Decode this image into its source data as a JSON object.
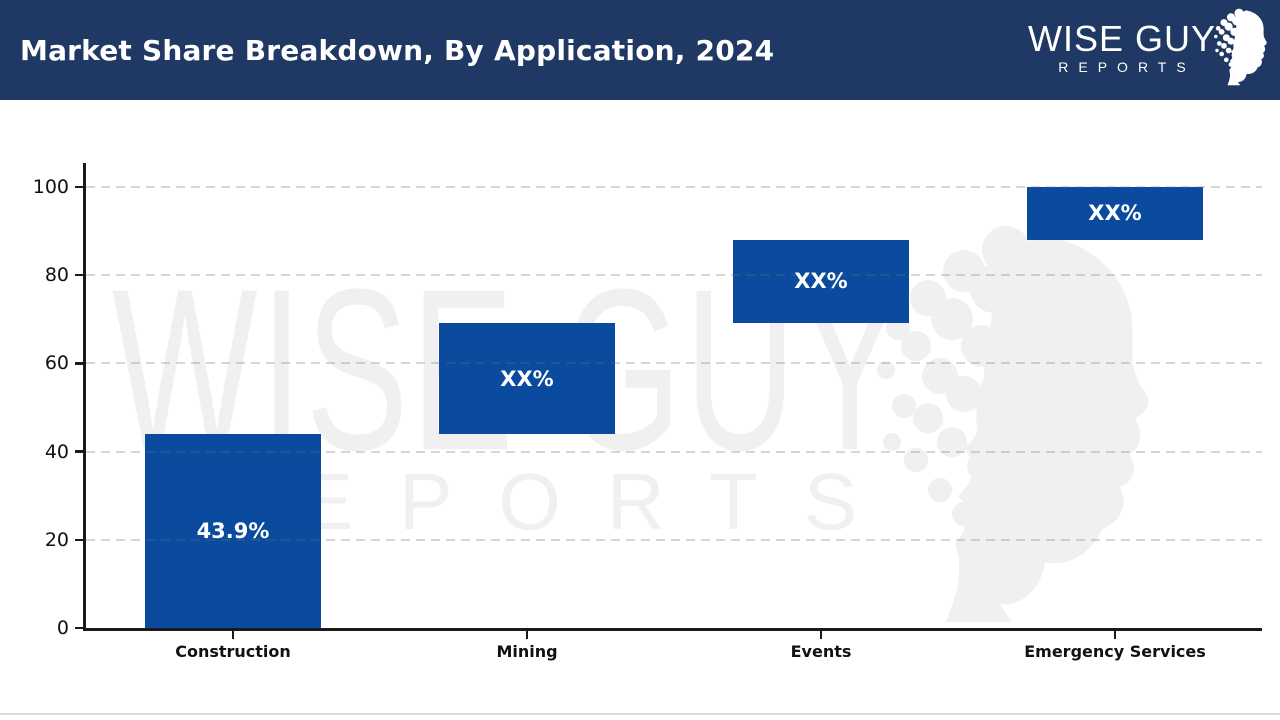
{
  "header": {
    "title": "Market Share Breakdown, By Application, 2024",
    "bg_color": "#1f3864",
    "logo": {
      "wordmark": "WISE GUY",
      "subtext": "REPORTS"
    }
  },
  "chart_data": {
    "type": "bar",
    "subtype": "waterfall",
    "title": "Market Share Breakdown, By Application, 2024",
    "categories": [
      "Construction",
      "Mining",
      "Events",
      "Emergency Services"
    ],
    "segments": [
      {
        "category": "Construction",
        "start": 0,
        "end": 43.9,
        "label": "43.9%"
      },
      {
        "category": "Mining",
        "start": 43.9,
        "end": 69.2,
        "label": "XX%"
      },
      {
        "category": "Events",
        "start": 69.2,
        "end": 88.0,
        "label": "XX%"
      },
      {
        "category": "Emergency Services",
        "start": 88.0,
        "end": 100.0,
        "label": "XX%"
      }
    ],
    "ylim": [
      0,
      100
    ],
    "yticks": [
      0,
      20,
      40,
      60,
      80,
      100
    ],
    "grid": "horizontal-dashed",
    "legend": "none",
    "bar_color": "#0a4a9f",
    "bar_label_color": "#ffffff",
    "axis_color": "#1a1a1a",
    "gridline_color": "#d9d9d9"
  },
  "watermark": {
    "wordmark": "WISE GUY",
    "subtext": "REPORTS"
  }
}
